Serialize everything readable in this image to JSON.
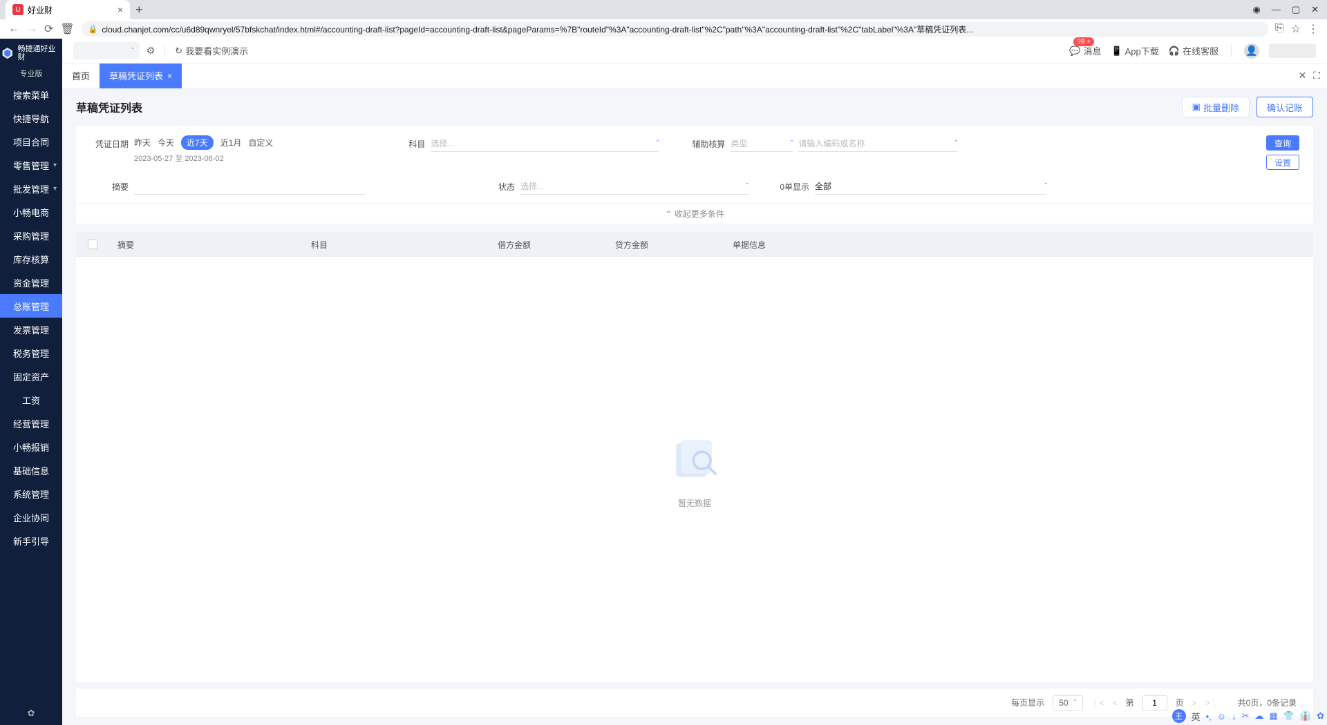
{
  "browser": {
    "tab_title": "好业财",
    "url": "cloud.chanjet.com/cc/u6d89qwnryel/57bfskchat/index.html#/accounting-draft-list?pageId=accounting-draft-list&pageParams=%7B\"routeId\"%3A\"accounting-draft-list\"%2C\"path\"%3A\"accounting-draft-list\"%2C\"tabLabel\"%3A\"草稿凭证列表..."
  },
  "brand": {
    "name": "畅捷通好业财",
    "edition": "专业版"
  },
  "sidebar": {
    "items": [
      {
        "label": "搜索菜单"
      },
      {
        "label": "快捷导航"
      },
      {
        "label": "项目合同"
      },
      {
        "label": "零售管理",
        "expand": true
      },
      {
        "label": "批发管理",
        "expand": true
      },
      {
        "label": "小畅电商"
      },
      {
        "label": "采购管理"
      },
      {
        "label": "库存核算"
      },
      {
        "label": "资金管理"
      },
      {
        "label": "总账管理",
        "active": true
      },
      {
        "label": "发票管理"
      },
      {
        "label": "税务管理"
      },
      {
        "label": "固定资产"
      },
      {
        "label": "工资"
      },
      {
        "label": "经营管理"
      },
      {
        "label": "小畅报销"
      },
      {
        "label": "基础信息"
      },
      {
        "label": "系统管理"
      },
      {
        "label": "企业协同"
      },
      {
        "label": "新手引导"
      }
    ]
  },
  "topbar": {
    "demo": "我要看实例演示",
    "msg": "消息",
    "msg_badge": "99 +",
    "download": "App下载",
    "support": "在线客服"
  },
  "tabs": [
    {
      "label": "首页"
    },
    {
      "label": "草稿凭证列表",
      "active": true,
      "closable": true
    }
  ],
  "page": {
    "title": "草稿凭证列表",
    "batch_delete": "批量删除",
    "confirm": "确认记账"
  },
  "filter": {
    "date_label": "凭证日期",
    "date_opts": [
      "昨天",
      "今天",
      "近7天",
      "近1月",
      "自定义"
    ],
    "date_active": 2,
    "date_range": "2023-05-27 至 2023-06-02",
    "subject_label": "科目",
    "subject_ph": "选择...",
    "aux_label": "辅助核算",
    "aux_type_ph": "类型",
    "aux_code_ph": "请输入编码或名称",
    "summary_label": "摘要",
    "status_label": "状态",
    "status_ph": "选择...",
    "zero_label": "0单显示",
    "zero_value": "全部",
    "query_btn": "查询",
    "set_btn": "设置",
    "collapse": "收起更多条件"
  },
  "table": {
    "cols": {
      "summary": "摘要",
      "subject": "科目",
      "debit": "借方金额",
      "credit": "贷方金额",
      "doc": "单据信息"
    },
    "empty": "暂无数据"
  },
  "pagination": {
    "per_page": "每页显示",
    "size": "50",
    "page_label_pre": "第",
    "page_label_post": "页",
    "current": "1",
    "total": "共0页，0条记录"
  },
  "ime": {
    "lang": "英"
  }
}
